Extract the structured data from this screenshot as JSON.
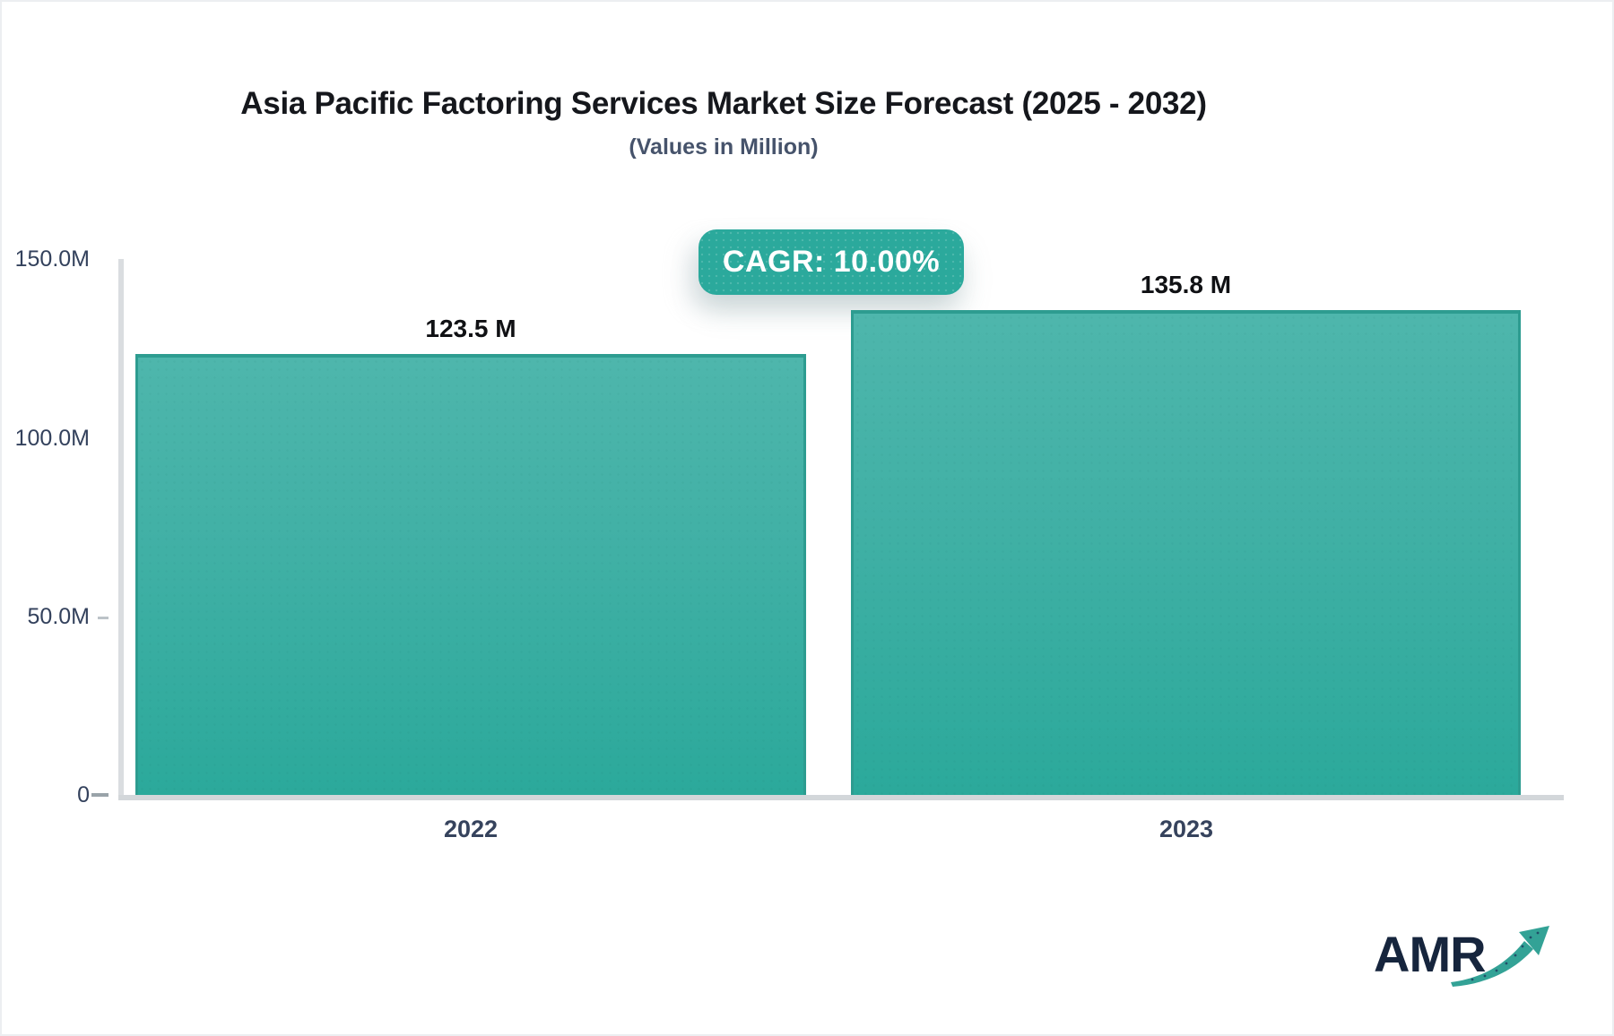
{
  "header": {
    "title": "Asia Pacific Factoring Services Market Size Forecast (2025 - 2032)",
    "subtitle": "(Values in Million)"
  },
  "badge": {
    "label": "CAGR: 10.00%",
    "color": "#2ba99c"
  },
  "chart_data": {
    "type": "bar",
    "title": "Asia Pacific Factoring Services Market Size Forecast (2025 - 2032)",
    "subtitle": "(Values in Million)",
    "categories": [
      "2022",
      "2023"
    ],
    "values": [
      123.5,
      135.8
    ],
    "value_labels": [
      "123.5 M",
      "135.8 M"
    ],
    "unit": "Million",
    "xlabel": "",
    "ylabel": "",
    "ylim": [
      0,
      150
    ],
    "yticks": [
      {
        "label": "150.0M",
        "value": 150
      },
      {
        "label": "100.0M",
        "value": 100
      },
      {
        "label": "50.0M",
        "value": 50
      },
      {
        "label": "0",
        "value": 0
      }
    ],
    "grid": false,
    "legend": false,
    "bar_color_top": "#4eb6ac",
    "bar_color_bottom": "#2ba99b",
    "bar_border_color": "#2d9c90",
    "axis_color": "#d3d7da",
    "annotation": "CAGR: 10.00%"
  },
  "logo": {
    "text": "AMR",
    "arrow_color": "#33a296"
  }
}
